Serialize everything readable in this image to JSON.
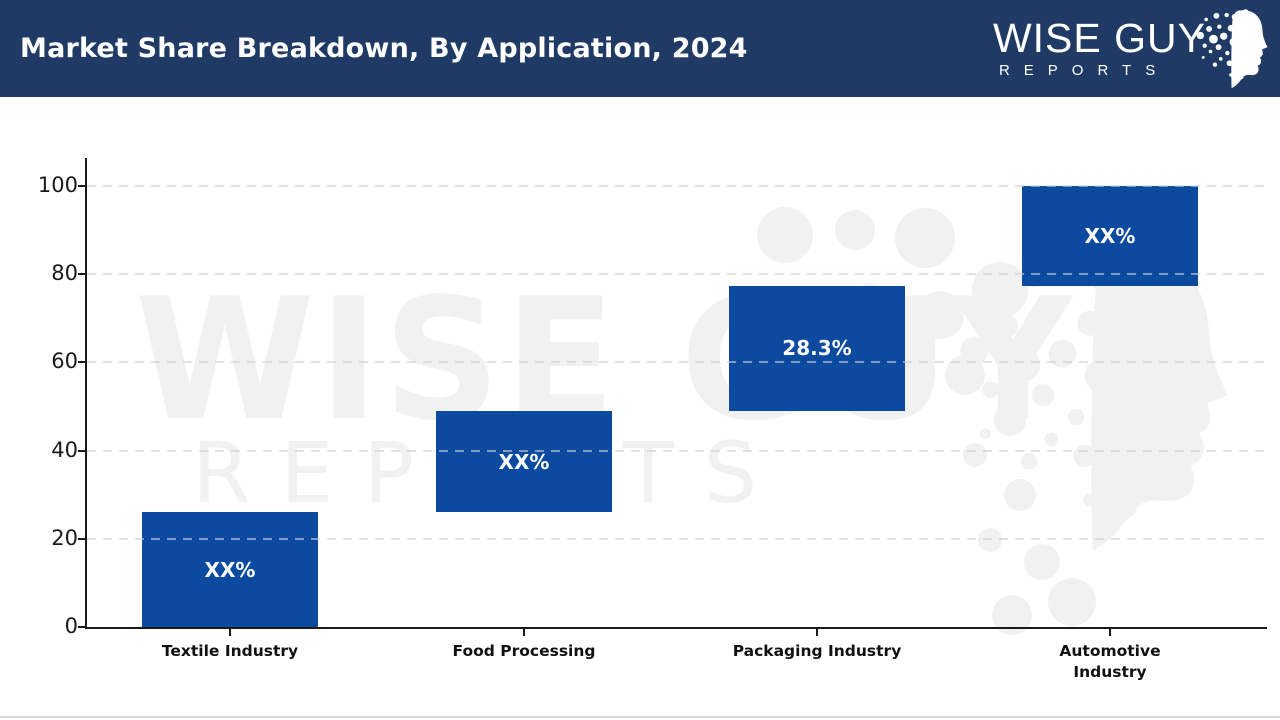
{
  "header": {
    "title": "Market Share Breakdown, By Application, 2024",
    "logo_line1": "WISE GUY",
    "logo_line2": "REPORTS"
  },
  "watermark": {
    "line1": "WISE GUY",
    "line2": "REPORTS"
  },
  "chart_data": {
    "type": "bar",
    "variant": "floating-waterfall-segments",
    "title": "Market Share Breakdown, By Application, 2024",
    "categories": [
      "Textile Industry",
      "Food Processing",
      "Packaging Industry",
      "Automotive\nIndustry"
    ],
    "segments": [
      {
        "category": "Textile Industry",
        "start": 0,
        "end": 26,
        "label": "XX%"
      },
      {
        "category": "Food Processing",
        "start": 26,
        "end": 49,
        "label": "XX%"
      },
      {
        "category": "Packaging Industry",
        "start": 49,
        "end": 77.3,
        "label": "28.3%"
      },
      {
        "category": "Automotive Industry",
        "start": 77.3,
        "end": 100,
        "label": "XX%"
      }
    ],
    "ylim": [
      0,
      100
    ],
    "yticks": [
      0,
      20,
      40,
      60,
      80,
      100
    ],
    "xlabel": "",
    "ylabel": "",
    "grid": "horizontal-dashed",
    "legend": "none",
    "colors": {
      "bar": "#0B4A9F",
      "bar_label": "#FFFFFF",
      "grid": "#D9D9D9",
      "axis": "#1A1A1A",
      "header_bg": "#1F3A64",
      "watermark": "#F1F1F1"
    }
  }
}
